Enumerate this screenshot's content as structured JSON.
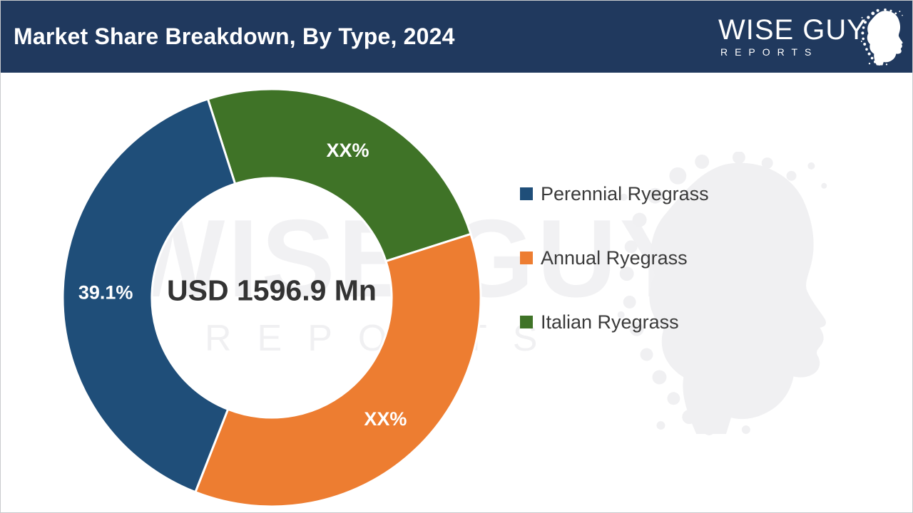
{
  "header": {
    "title": "Market Share Breakdown, By Type, 2024",
    "logo": {
      "brand": "WISE GUY",
      "sub": "REPORTS"
    }
  },
  "watermark": {
    "line1": "WISE GUY",
    "line2": "REPORTS"
  },
  "chart_data": {
    "type": "pie",
    "subtype": "donut",
    "title": "Market Share Breakdown, By Type, 2024",
    "center_label": "USD 1596.9 Mn",
    "legend_position": "right",
    "start_angle_deg_cw_from_north": -17.8,
    "note": "Only the Perennial Ryegrass share (39.1%) is printed; other segment labels show XX%. Their value_pct are estimated from arc angles.",
    "segments": [
      {
        "label": "Perennial Ryegrass",
        "display_label": "39.1%",
        "value_pct": 39.1,
        "estimated": false,
        "color": "#1F4E79"
      },
      {
        "label": "Annual Ryegrass",
        "display_label": "XX%",
        "value_pct": 35.9,
        "estimated": true,
        "color": "#ED7D31"
      },
      {
        "label": "Italian Ryegrass",
        "display_label": "XX%",
        "value_pct": 25.0,
        "estimated": true,
        "color": "#3F7327"
      }
    ]
  }
}
